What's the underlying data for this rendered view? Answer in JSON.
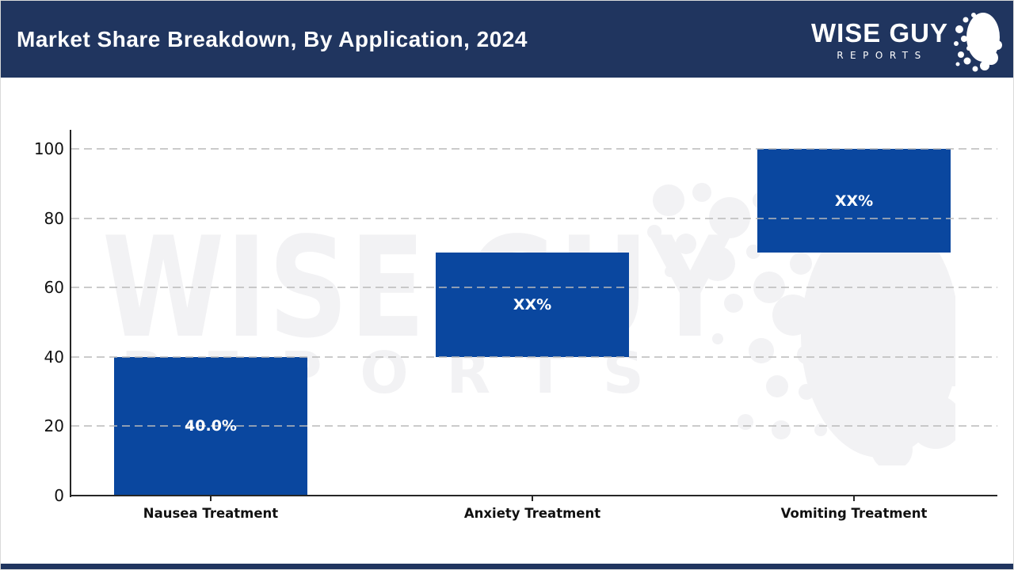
{
  "header": {
    "title": "Market Share Breakdown, By Application, 2024"
  },
  "logo": {
    "wordmark": "WISE GUY",
    "subtext": "REPORTS"
  },
  "watermark": {
    "wordmark": "WISE GUY",
    "subtext": "REPORTS"
  },
  "chart_data": {
    "type": "bar",
    "subtype": "segmented-breakdown-waterfall",
    "title": "Market Share Breakdown, By Application, 2024",
    "categories": [
      "Nausea Treatment",
      "Anxiety Treatment",
      "Vomiting Treatment"
    ],
    "series": [
      {
        "name": "Market Share (%)",
        "values": [
          40,
          30,
          30
        ]
      }
    ],
    "segments": [
      {
        "category": "Nausea Treatment",
        "start": 0,
        "end": 40,
        "value_label": "40.0%"
      },
      {
        "category": "Anxiety Treatment",
        "start": 40,
        "end": 70,
        "value_label": "XX%"
      },
      {
        "category": "Vomiting Treatment",
        "start": 70,
        "end": 100,
        "value_label": "XX%"
      }
    ],
    "xlabel": "",
    "ylabel": "",
    "ylim": [
      0,
      100
    ],
    "yticks": [
      0,
      20,
      40,
      60,
      80,
      100
    ],
    "grid": "horizontal-dashed",
    "legend": "none",
    "bar_color": "#0a479f",
    "colors": {
      "header_bg": "#20355f",
      "footer_bg": "#20355f",
      "grid": "#bababa",
      "axis": "#262626",
      "bar_label": "#ffffff",
      "watermark": "#f2f2f4"
    }
  }
}
